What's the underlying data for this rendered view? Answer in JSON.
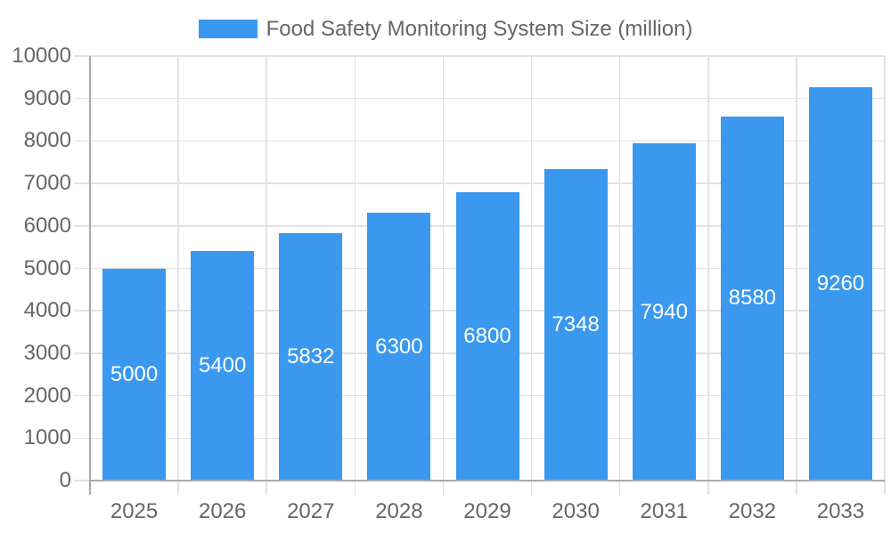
{
  "legend": {
    "label": "Food Safety Monitoring System Size (million)"
  },
  "chart_data": {
    "type": "bar",
    "title": "Food Safety Monitoring System Size (million)",
    "xlabel": "",
    "ylabel": "",
    "categories": [
      "2025",
      "2026",
      "2027",
      "2028",
      "2029",
      "2030",
      "2031",
      "2032",
      "2033"
    ],
    "series": [
      {
        "name": "Food Safety Monitoring System Size (million)",
        "values": [
          5000,
          5400,
          5832,
          6300,
          6800,
          7348,
          7940,
          8580,
          9260
        ]
      }
    ],
    "value_labels": [
      "5000",
      "5400",
      "5832",
      "6300",
      "6800",
      "7348",
      "7940",
      "8580",
      "9260"
    ],
    "ylim": [
      0,
      10000
    ],
    "yticks": [
      0,
      1000,
      2000,
      3000,
      4000,
      5000,
      6000,
      7000,
      8000,
      9000,
      10000
    ],
    "grid": true,
    "legend_position": "top",
    "colors": {
      "bar": "#3A99EE",
      "grid": "#E2E2E2",
      "axis_line": "#AAAAAA",
      "tick_text": "#666666",
      "legend_text": "#666666",
      "value_label_text": "#FFFFFF",
      "background": "#FFFFFF"
    }
  }
}
